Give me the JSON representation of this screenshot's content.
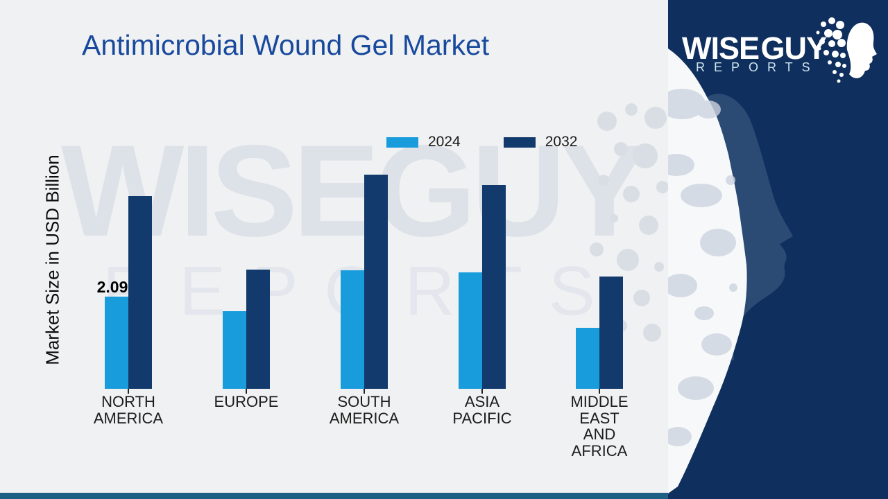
{
  "page": {
    "background_color": "#f0f1f2",
    "accent_strip_color": "#1e6084"
  },
  "header": {
    "title": "Antimicrobial Wound Gel Market",
    "title_color": "#18499d"
  },
  "watermark": {
    "brand": "WISEGUY",
    "sub": "REPORTS"
  },
  "brand_panel": {
    "bg_color": "#0f2f5e",
    "logo_name": "WISE GUY",
    "logo_sub": "REPORTS"
  },
  "chart_data": {
    "type": "bar",
    "title": "Antimicrobial Wound Gel Market",
    "xlabel": "",
    "ylabel": "Market Size in USD Billion",
    "units": "USD Billion",
    "categories": [
      "NORTH AMERICA",
      "EUROPE",
      "SOUTH AMERICA",
      "ASIA PACIFIC",
      "MIDDLE EAST AND AFRICA"
    ],
    "category_lines": [
      [
        "NORTH",
        "AMERICA"
      ],
      [
        "EUROPE"
      ],
      [
        "SOUTH",
        "AMERICA"
      ],
      [
        "ASIA",
        "PACIFIC"
      ],
      [
        "MIDDLE",
        "EAST",
        "AND",
        "AFRICA"
      ]
    ],
    "series": [
      {
        "name": "2024",
        "color": "#199cdc",
        "values": [
          2.09,
          1.76,
          2.69,
          2.64,
          1.39
        ]
      },
      {
        "name": "2032",
        "color": "#133a6d",
        "values": [
          4.37,
          2.7,
          4.86,
          4.62,
          2.55
        ]
      }
    ],
    "data_labels": [
      {
        "series": "2024",
        "category": "NORTH AMERICA",
        "text": "2.09"
      }
    ],
    "ylim": [
      0,
      5.6
    ],
    "grid": false,
    "axis_lines": false,
    "legend_position": "top"
  }
}
